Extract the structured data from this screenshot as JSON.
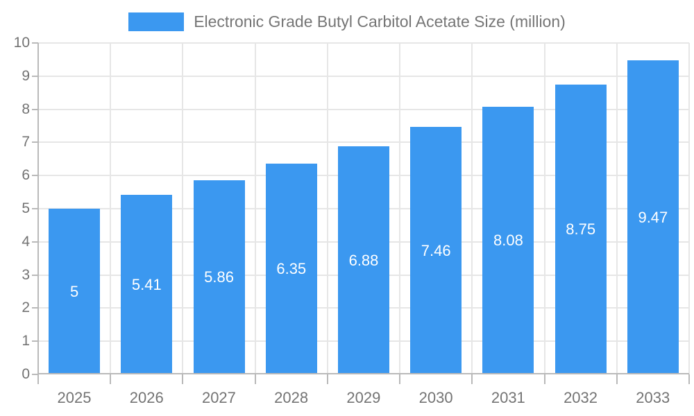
{
  "chart_data": {
    "type": "bar",
    "title": "Electronic Grade Butyl Carbitol Acetate Size (million)",
    "legend": {
      "position": "top-center",
      "label": "Electronic Grade Butyl Carbitol Acetate Size (million)"
    },
    "categories": [
      "2025",
      "2026",
      "2027",
      "2028",
      "2029",
      "2030",
      "2031",
      "2032",
      "2033"
    ],
    "series": [
      {
        "name": "Electronic Grade Butyl Carbitol Acetate Size (million)",
        "values": [
          5,
          5.41,
          5.86,
          6.35,
          6.88,
          7.46,
          8.08,
          8.75,
          9.47
        ],
        "value_labels": [
          "5",
          "5.41",
          "5.86",
          "6.35",
          "6.88",
          "7.46",
          "8.08",
          "8.75",
          "9.47"
        ]
      }
    ],
    "xlabel": "",
    "ylabel": "",
    "ylim": [
      0,
      10
    ],
    "yticks": [
      "0",
      "1",
      "2",
      "3",
      "4",
      "5",
      "6",
      "7",
      "8",
      "9",
      "10"
    ],
    "grid": true,
    "value_labels_inside_bars": true
  },
  "colors": {
    "background": "#FFFFFF",
    "bar": "#3B98F0",
    "axis_line": "#B9B9B9",
    "gridline": "#E6E6E6",
    "tick_text": "#737373",
    "legend_text": "#757575",
    "bar_value_text": "#FFFFFF"
  }
}
